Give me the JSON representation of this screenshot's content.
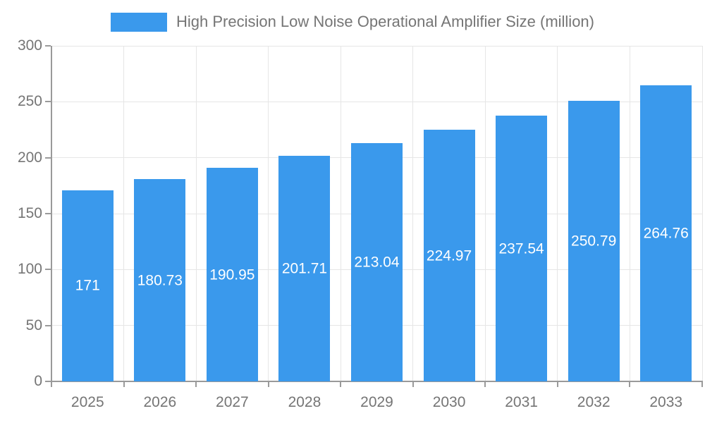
{
  "chart_data": {
    "type": "bar",
    "title": "High Precision Low Noise Operational Amplifier Size (million)",
    "legend_position": "top",
    "grid": true,
    "categories": [
      "2025",
      "2026",
      "2027",
      "2028",
      "2029",
      "2030",
      "2031",
      "2032",
      "2033"
    ],
    "values": [
      171,
      180.73,
      190.95,
      201.71,
      213.04,
      224.97,
      237.54,
      250.79,
      264.76
    ],
    "value_labels": [
      "171",
      "180.73",
      "190.95",
      "201.71",
      "213.04",
      "224.97",
      "237.54",
      "250.79",
      "264.76"
    ],
    "xlabel": "",
    "ylabel": "",
    "ylim": [
      0,
      300
    ],
    "ytick_step": 50,
    "ytick_labels": [
      "0",
      "50",
      "100",
      "150",
      "200",
      "250",
      "300"
    ],
    "colors": {
      "bar": "#3a99ec",
      "grid": "#e6e6e6",
      "axis": "#9a9a9a",
      "tick_text": "#757575",
      "title_text": "#757575",
      "value_text": "#ffffff",
      "background": "#ffffff"
    }
  }
}
